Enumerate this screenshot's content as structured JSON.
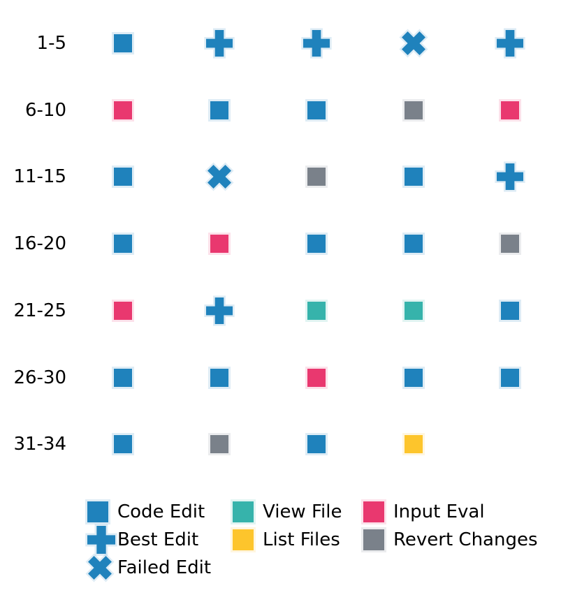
{
  "chart_data": {
    "type": "scatter",
    "title": "",
    "description": "Grid of action markers per step range with categorical legend",
    "background": "#ffffff",
    "grid": false,
    "legend_position": "bottom",
    "legend_columns": 3,
    "row_labels": [
      "1-5",
      "6-10",
      "11-15",
      "16-20",
      "21-25",
      "26-30",
      "31-34"
    ],
    "rows": [
      [
        "Code Edit",
        "Best Edit",
        "Best Edit",
        "Failed Edit",
        "Best Edit"
      ],
      [
        "Input Eval",
        "Code Edit",
        "Code Edit",
        "Revert Changes",
        "Input Eval"
      ],
      [
        "Code Edit",
        "Failed Edit",
        "Revert Changes",
        "Code Edit",
        "Best Edit"
      ],
      [
        "Code Edit",
        "Input Eval",
        "Code Edit",
        "Code Edit",
        "Revert Changes"
      ],
      [
        "Input Eval",
        "Best Edit",
        "View File",
        "View File",
        "Code Edit"
      ],
      [
        "Code Edit",
        "Code Edit",
        "Input Eval",
        "Code Edit",
        "Code Edit"
      ],
      [
        "Code Edit",
        "Revert Changes",
        "Code Edit",
        "List Files"
      ]
    ],
    "legend": [
      {
        "label": "Code Edit",
        "marker": "square",
        "color": "#1f82bc"
      },
      {
        "label": "View File",
        "marker": "square",
        "color": "#36b3ab"
      },
      {
        "label": "Input Eval",
        "marker": "square",
        "color": "#e9386f"
      },
      {
        "label": "Best Edit",
        "marker": "plus",
        "color": "#1f82bc"
      },
      {
        "label": "List Files",
        "marker": "square",
        "color": "#fdc52c"
      },
      {
        "label": "Revert Changes",
        "marker": "square",
        "color": "#7a818a"
      },
      {
        "label": "Failed Edit",
        "marker": "x",
        "color": "#1f82bc"
      }
    ],
    "palette": {
      "blue": "#1f82bc",
      "teal": "#36b3ab",
      "pink": "#e9386f",
      "yellow": "#fdc52c",
      "gray": "#7a818a",
      "text": "#000000"
    }
  }
}
